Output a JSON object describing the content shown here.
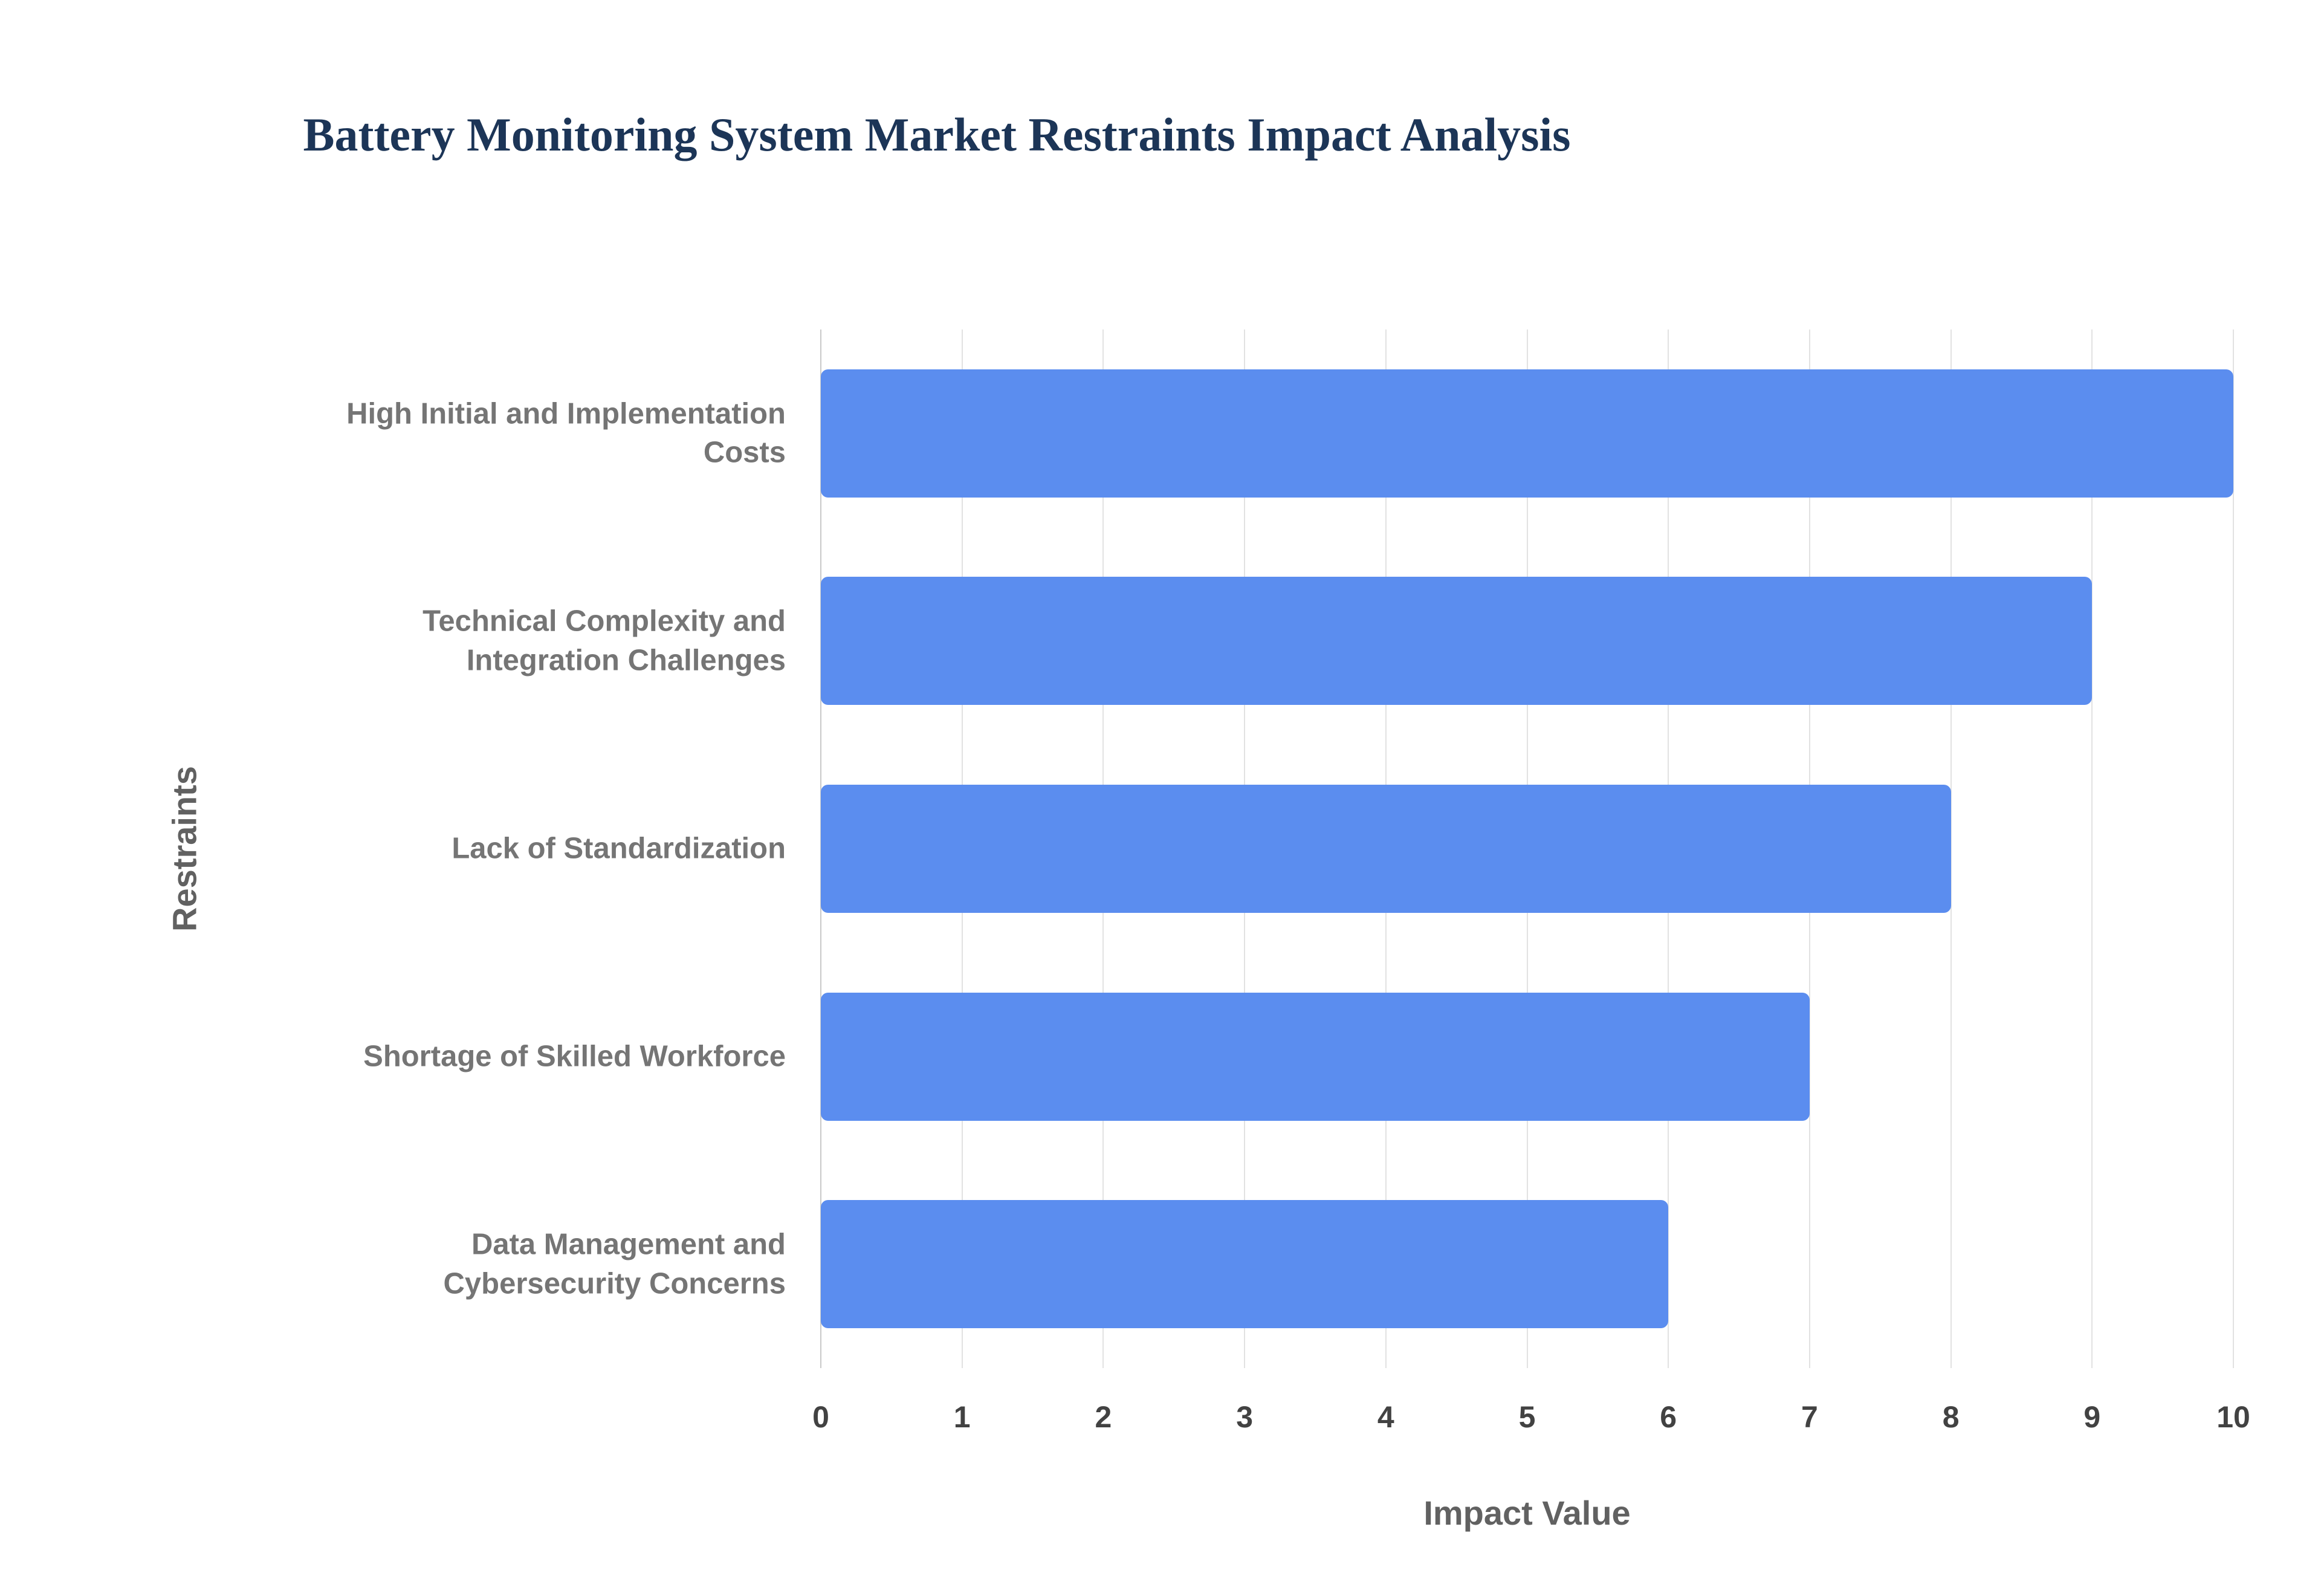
{
  "title": "Battery Monitoring System Market Restraints Impact Analysis",
  "chart_data": {
    "type": "bar",
    "orientation": "horizontal",
    "title": "Battery Monitoring System Market Restraints Impact Analysis",
    "categories": [
      "High Initial and Implementation Costs",
      "Technical Complexity and Integration Challenges",
      "Lack of Standardization",
      "Shortage of Skilled Workforce",
      "Data Management and Cybersecurity Concerns"
    ],
    "values": [
      10,
      9,
      8,
      7,
      6
    ],
    "xlabel": "Impact Value",
    "ylabel": "Restraints",
    "xlim": [
      0,
      10
    ],
    "x_ticks": [
      0,
      1,
      2,
      3,
      4,
      5,
      6,
      7,
      8,
      9,
      10
    ],
    "grid": "vertical",
    "legend": "none",
    "bar_color": "#5b8def",
    "background_color": "#ffffff",
    "title_color": "#1c3557",
    "label_color": "#757575",
    "tick_color": "#424242"
  }
}
